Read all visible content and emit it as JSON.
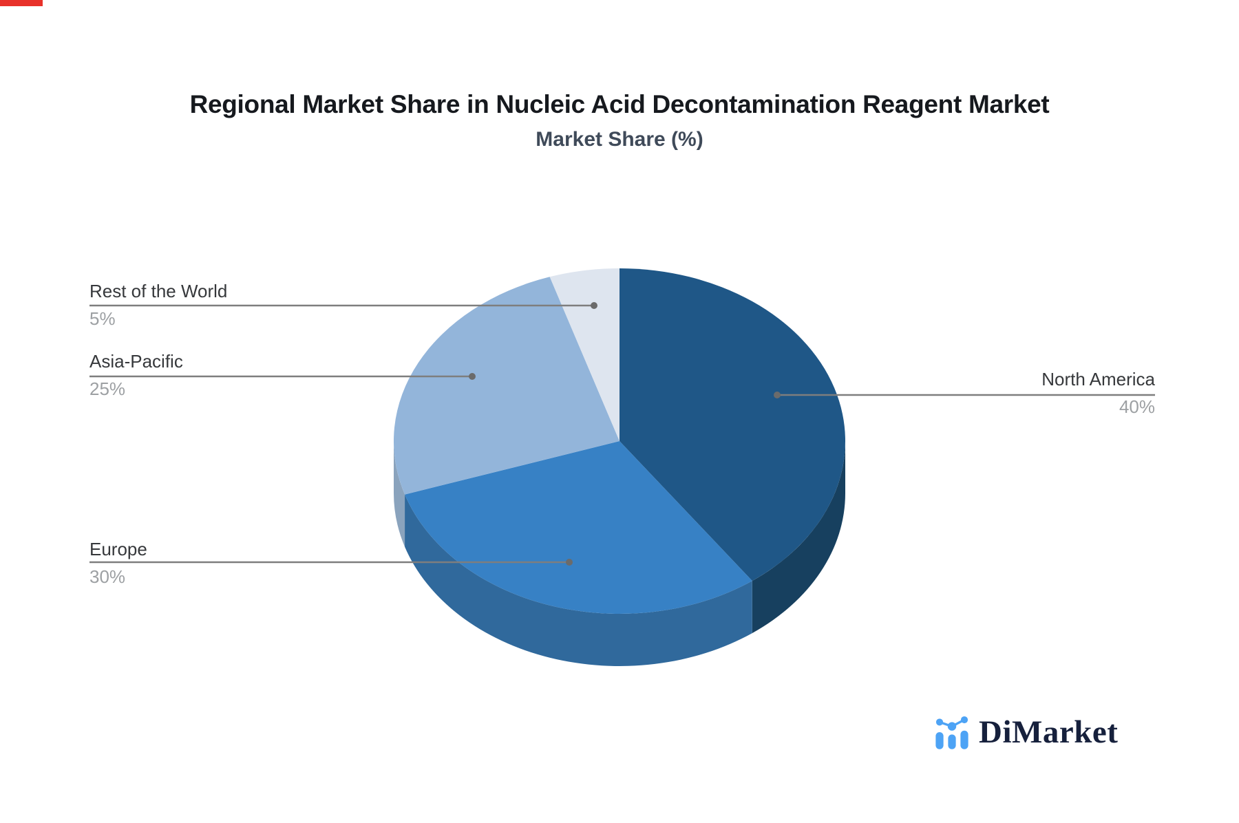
{
  "title": "Regional Market Share in Nucleic Acid Decontamination Reagent Market",
  "subtitle": "Market Share (%)",
  "brand": {
    "name": "DiMarket"
  },
  "colors": {
    "background": "#ffffff",
    "title_text": "#16191e",
    "subtitle_text": "#3f4a59",
    "callout_label_text": "#36383b",
    "callout_value_text": "#9da0a3",
    "leader_line": "#7e7e7e",
    "leader_dot": "#6b6b6b",
    "brand_text": "#16203c",
    "brand_icon": "#4da3f5",
    "top_left_marker": "#e8312a"
  },
  "chart_data": {
    "type": "pie",
    "title": "Regional Market Share in Nucleic Acid Decontamination Reagent Market",
    "subtitle": "Market Share (%)",
    "unit": "%",
    "style": "3d-extruded",
    "start_angle_deg": 0,
    "direction": "clockwise",
    "legend_position": "callout-labels",
    "slices": [
      {
        "label": "North America",
        "value": 40,
        "display": "40%",
        "color": "#1f5787",
        "side_color": "#17405f"
      },
      {
        "label": "Europe",
        "value": 30,
        "display": "30%",
        "color": "#3781c5",
        "side_color": "#30699c"
      },
      {
        "label": "Asia-Pacific",
        "value": 25,
        "display": "25%",
        "color": "#93b5da",
        "side_color": "#8aa3bd"
      },
      {
        "label": "Rest of the World",
        "value": 5,
        "display": "5%",
        "color": "#dee5ef",
        "side_color": "#c5cedd"
      }
    ]
  }
}
